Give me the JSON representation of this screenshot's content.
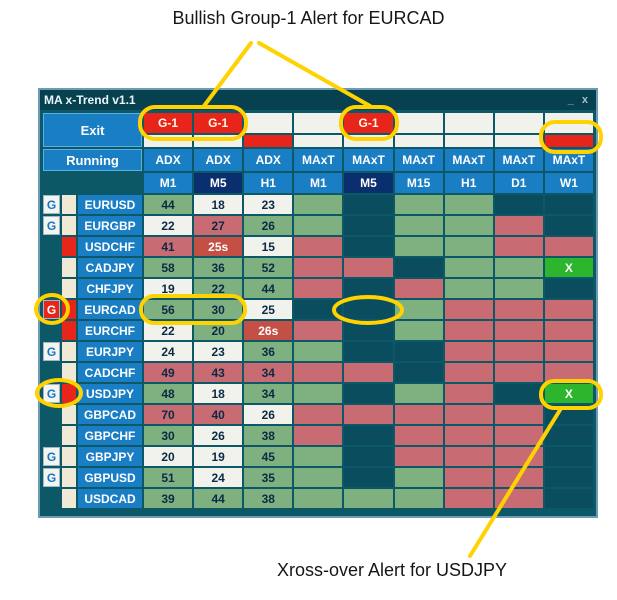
{
  "annotations": {
    "top_text": "Bullish Group-1 Alert for EURCAD",
    "bottom_text": "Xross-over Alert for USDJPY",
    "highlight_color": "#FFD200"
  },
  "window": {
    "title": "MA x-Trend v1.1",
    "minimize_label": "_",
    "close_label": "x",
    "exit_button": "Exit",
    "running_button": "Running"
  },
  "colors": {
    "panel_bg": "#0d5866",
    "header_blue": "#1a7ec4",
    "navy_timeframe": "#0a2f6e",
    "alert_red": "#e8251a",
    "trend_green": "#7fb07f",
    "trend_red": "#c96b72",
    "cross_green": "#2db52d"
  },
  "columns": [
    {
      "group": "ADX",
      "tf": "M1",
      "dark": false
    },
    {
      "group": "ADX",
      "tf": "M5",
      "dark": true
    },
    {
      "group": "ADX",
      "tf": "H1",
      "dark": false
    },
    {
      "group": "MAxT",
      "tf": "M1",
      "dark": false
    },
    {
      "group": "MAxT",
      "tf": "M5",
      "dark": true
    },
    {
      "group": "MAxT",
      "tf": "M15",
      "dark": false
    },
    {
      "group": "MAxT",
      "tf": "H1",
      "dark": false
    },
    {
      "group": "MAxT",
      "tf": "D1",
      "dark": false
    },
    {
      "group": "MAxT",
      "tf": "W1",
      "dark": false
    }
  ],
  "exit_row": {
    "top": [
      "G-1",
      "G-1",
      "",
      "",
      "G-1",
      "",
      "",
      "",
      ""
    ],
    "top_colors": [
      "red",
      "red",
      "white",
      "white",
      "red",
      "white",
      "white",
      "white",
      "white"
    ],
    "bottom_colors": [
      "white",
      "white",
      "red",
      "white",
      "white",
      "white",
      "white",
      "white",
      "red"
    ]
  },
  "rows": [
    {
      "pair": "EURUSD",
      "g": "G",
      "g_red": false,
      "strip": "cream",
      "adx": [
        {
          "v": "44",
          "c": "green"
        },
        {
          "v": "18",
          "c": "white"
        },
        {
          "v": "23",
          "c": "white"
        }
      ],
      "maxt": [
        {
          "c": "green",
          "t": ""
        },
        {
          "c": "dark",
          "t": ""
        },
        {
          "c": "green",
          "t": ""
        },
        {
          "c": "green",
          "t": ""
        },
        {
          "c": "dark",
          "t": ""
        },
        {
          "c": "dark",
          "t": ""
        }
      ]
    },
    {
      "pair": "EURGBP",
      "g": "G",
      "g_red": false,
      "strip": "cream",
      "adx": [
        {
          "v": "22",
          "c": "white"
        },
        {
          "v": "27",
          "c": "tred"
        },
        {
          "v": "26",
          "c": "green"
        }
      ],
      "maxt": [
        {
          "c": "green",
          "t": ""
        },
        {
          "c": "dark",
          "t": ""
        },
        {
          "c": "green",
          "t": ""
        },
        {
          "c": "green",
          "t": ""
        },
        {
          "c": "tred",
          "t": ""
        },
        {
          "c": "dark",
          "t": ""
        }
      ]
    },
    {
      "pair": "USDCHF",
      "g": "",
      "g_red": false,
      "strip": "red",
      "adx": [
        {
          "v": "41",
          "c": "tred"
        },
        {
          "v": "25s",
          "c": "sred"
        },
        {
          "v": "15",
          "c": "white"
        }
      ],
      "maxt": [
        {
          "c": "tred",
          "t": ""
        },
        {
          "c": "dark",
          "t": ""
        },
        {
          "c": "green",
          "t": ""
        },
        {
          "c": "green",
          "t": ""
        },
        {
          "c": "tred",
          "t": ""
        },
        {
          "c": "tred",
          "t": ""
        }
      ]
    },
    {
      "pair": "CADJPY",
      "g": "",
      "g_red": false,
      "strip": "cream",
      "adx": [
        {
          "v": "58",
          "c": "green"
        },
        {
          "v": "36",
          "c": "green"
        },
        {
          "v": "52",
          "c": "green"
        }
      ],
      "maxt": [
        {
          "c": "tred",
          "t": ""
        },
        {
          "c": "tred",
          "t": ""
        },
        {
          "c": "dark",
          "t": ""
        },
        {
          "c": "green",
          "t": ""
        },
        {
          "c": "green",
          "t": ""
        },
        {
          "c": "x",
          "t": "X"
        }
      ]
    },
    {
      "pair": "CHFJPY",
      "g": "",
      "g_red": false,
      "strip": "cream",
      "adx": [
        {
          "v": "19",
          "c": "white"
        },
        {
          "v": "22",
          "c": "green"
        },
        {
          "v": "44",
          "c": "green"
        }
      ],
      "maxt": [
        {
          "c": "tred",
          "t": ""
        },
        {
          "c": "dark",
          "t": ""
        },
        {
          "c": "tred",
          "t": ""
        },
        {
          "c": "green",
          "t": ""
        },
        {
          "c": "green",
          "t": ""
        },
        {
          "c": "dark",
          "t": ""
        }
      ]
    },
    {
      "pair": "EURCAD",
      "g": "G",
      "g_red": true,
      "strip": "red",
      "adx": [
        {
          "v": "56",
          "c": "green"
        },
        {
          "v": "30",
          "c": "green"
        },
        {
          "v": "25",
          "c": "white"
        }
      ],
      "maxt": [
        {
          "c": "dark",
          "t": ""
        },
        {
          "c": "dark",
          "t": ""
        },
        {
          "c": "green",
          "t": ""
        },
        {
          "c": "tred",
          "t": ""
        },
        {
          "c": "tred",
          "t": ""
        },
        {
          "c": "tred",
          "t": ""
        }
      ]
    },
    {
      "pair": "EURCHF",
      "g": "",
      "g_red": false,
      "strip": "red",
      "adx": [
        {
          "v": "22",
          "c": "white"
        },
        {
          "v": "20",
          "c": "green"
        },
        {
          "v": "26s",
          "c": "sred"
        }
      ],
      "maxt": [
        {
          "c": "tred",
          "t": ""
        },
        {
          "c": "dark",
          "t": ""
        },
        {
          "c": "green",
          "t": ""
        },
        {
          "c": "tred",
          "t": ""
        },
        {
          "c": "tred",
          "t": ""
        },
        {
          "c": "tred",
          "t": ""
        }
      ]
    },
    {
      "pair": "EURJPY",
      "g": "G",
      "g_red": false,
      "strip": "cream",
      "adx": [
        {
          "v": "24",
          "c": "white"
        },
        {
          "v": "23",
          "c": "white"
        },
        {
          "v": "36",
          "c": "green"
        }
      ],
      "maxt": [
        {
          "c": "green",
          "t": ""
        },
        {
          "c": "dark",
          "t": ""
        },
        {
          "c": "dark",
          "t": ""
        },
        {
          "c": "tred",
          "t": ""
        },
        {
          "c": "tred",
          "t": ""
        },
        {
          "c": "tred",
          "t": ""
        }
      ]
    },
    {
      "pair": "CADCHF",
      "g": "",
      "g_red": false,
      "strip": "cream",
      "adx": [
        {
          "v": "49",
          "c": "tred"
        },
        {
          "v": "43",
          "c": "tred"
        },
        {
          "v": "34",
          "c": "tred"
        }
      ],
      "maxt": [
        {
          "c": "tred",
          "t": ""
        },
        {
          "c": "tred",
          "t": ""
        },
        {
          "c": "dark",
          "t": ""
        },
        {
          "c": "tred",
          "t": ""
        },
        {
          "c": "tred",
          "t": ""
        },
        {
          "c": "tred",
          "t": ""
        }
      ]
    },
    {
      "pair": "USDJPY",
      "g": "G",
      "g_red": false,
      "strip": "red",
      "adx": [
        {
          "v": "48",
          "c": "green"
        },
        {
          "v": "18",
          "c": "white"
        },
        {
          "v": "34",
          "c": "green"
        }
      ],
      "maxt": [
        {
          "c": "green",
          "t": ""
        },
        {
          "c": "dark",
          "t": ""
        },
        {
          "c": "green",
          "t": ""
        },
        {
          "c": "tred",
          "t": ""
        },
        {
          "c": "dark",
          "t": ""
        },
        {
          "c": "x",
          "t": "X"
        }
      ]
    },
    {
      "pair": "GBPCAD",
      "g": "",
      "g_red": false,
      "strip": "cream",
      "adx": [
        {
          "v": "70",
          "c": "tred"
        },
        {
          "v": "40",
          "c": "tred"
        },
        {
          "v": "26",
          "c": "white"
        }
      ],
      "maxt": [
        {
          "c": "tred",
          "t": ""
        },
        {
          "c": "tred",
          "t": ""
        },
        {
          "c": "tred",
          "t": ""
        },
        {
          "c": "tred",
          "t": ""
        },
        {
          "c": "tred",
          "t": ""
        },
        {
          "c": "dark",
          "t": ""
        }
      ]
    },
    {
      "pair": "GBPCHF",
      "g": "",
      "g_red": false,
      "strip": "cream",
      "adx": [
        {
          "v": "30",
          "c": "green"
        },
        {
          "v": "26",
          "c": "white"
        },
        {
          "v": "38",
          "c": "green"
        }
      ],
      "maxt": [
        {
          "c": "tred",
          "t": ""
        },
        {
          "c": "dark",
          "t": ""
        },
        {
          "c": "tred",
          "t": ""
        },
        {
          "c": "tred",
          "t": ""
        },
        {
          "c": "tred",
          "t": ""
        },
        {
          "c": "dark",
          "t": ""
        }
      ]
    },
    {
      "pair": "GBPJPY",
      "g": "G",
      "g_red": false,
      "strip": "cream",
      "adx": [
        {
          "v": "20",
          "c": "white"
        },
        {
          "v": "19",
          "c": "white"
        },
        {
          "v": "45",
          "c": "green"
        }
      ],
      "maxt": [
        {
          "c": "green",
          "t": ""
        },
        {
          "c": "dark",
          "t": ""
        },
        {
          "c": "tred",
          "t": ""
        },
        {
          "c": "tred",
          "t": ""
        },
        {
          "c": "tred",
          "t": ""
        },
        {
          "c": "dark",
          "t": ""
        }
      ]
    },
    {
      "pair": "GBPUSD",
      "g": "G",
      "g_red": false,
      "strip": "cream",
      "adx": [
        {
          "v": "51",
          "c": "green"
        },
        {
          "v": "24",
          "c": "white"
        },
        {
          "v": "35",
          "c": "green"
        }
      ],
      "maxt": [
        {
          "c": "green",
          "t": ""
        },
        {
          "c": "dark",
          "t": ""
        },
        {
          "c": "green",
          "t": ""
        },
        {
          "c": "tred",
          "t": ""
        },
        {
          "c": "tred",
          "t": ""
        },
        {
          "c": "dark",
          "t": ""
        }
      ]
    },
    {
      "pair": "USDCAD",
      "g": "",
      "g_red": false,
      "strip": "cream",
      "adx": [
        {
          "v": "39",
          "c": "green"
        },
        {
          "v": "44",
          "c": "green"
        },
        {
          "v": "38",
          "c": "green"
        }
      ],
      "maxt": [
        {
          "c": "green",
          "t": ""
        },
        {
          "c": "green",
          "t": ""
        },
        {
          "c": "green",
          "t": ""
        },
        {
          "c": "tred",
          "t": ""
        },
        {
          "c": "tred",
          "t": ""
        },
        {
          "c": "dark",
          "t": ""
        }
      ]
    }
  ]
}
